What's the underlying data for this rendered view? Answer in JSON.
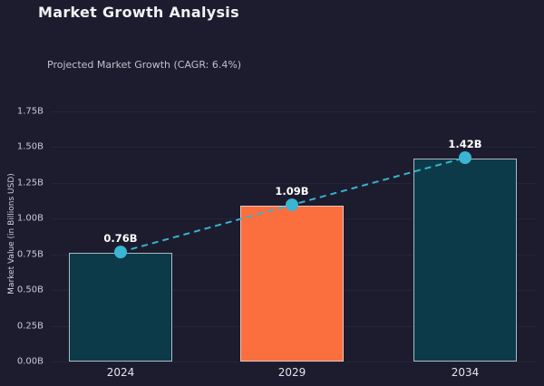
{
  "page": {
    "background_color": "#1c1c2e"
  },
  "header": {
    "title": "Market Growth Analysis",
    "subtitle": "Projected Market Growth (CAGR: 6.4%)"
  },
  "chart_data": {
    "type": "bar",
    "title": "Market Growth Analysis",
    "subtitle": "Projected Market Growth (CAGR: 6.4%)",
    "categories": [
      "2024",
      "2029",
      "2034"
    ],
    "values": [
      0.76,
      1.09,
      1.42
    ],
    "value_labels": [
      "0.76B",
      "1.09B",
      "1.42B"
    ],
    "bar_colors": [
      "#0d3a48",
      "#fb6e3e",
      "#0d3a48"
    ],
    "bar_border_color": "rgba(224,230,236,0.75)",
    "xlabel": "",
    "ylabel": "Market Value (in Billions USD)",
    "ylim": [
      0,
      1.75
    ],
    "y_ticks": [
      0,
      0.25,
      0.5,
      0.75,
      1.0,
      1.25,
      1.5,
      1.75
    ],
    "y_tick_labels": [
      "0.00B",
      "0.25B",
      "0.50B",
      "0.75B",
      "1.00B",
      "1.25B",
      "1.50B",
      "1.75B"
    ],
    "grid": "horizontal, very faint",
    "legend": "none",
    "trend_line": {
      "style": "dashed",
      "color": "#38b2cf",
      "marker": "circle",
      "marker_color": "#3ab5d3",
      "points": [
        0.76,
        1.09,
        1.42
      ]
    }
  }
}
